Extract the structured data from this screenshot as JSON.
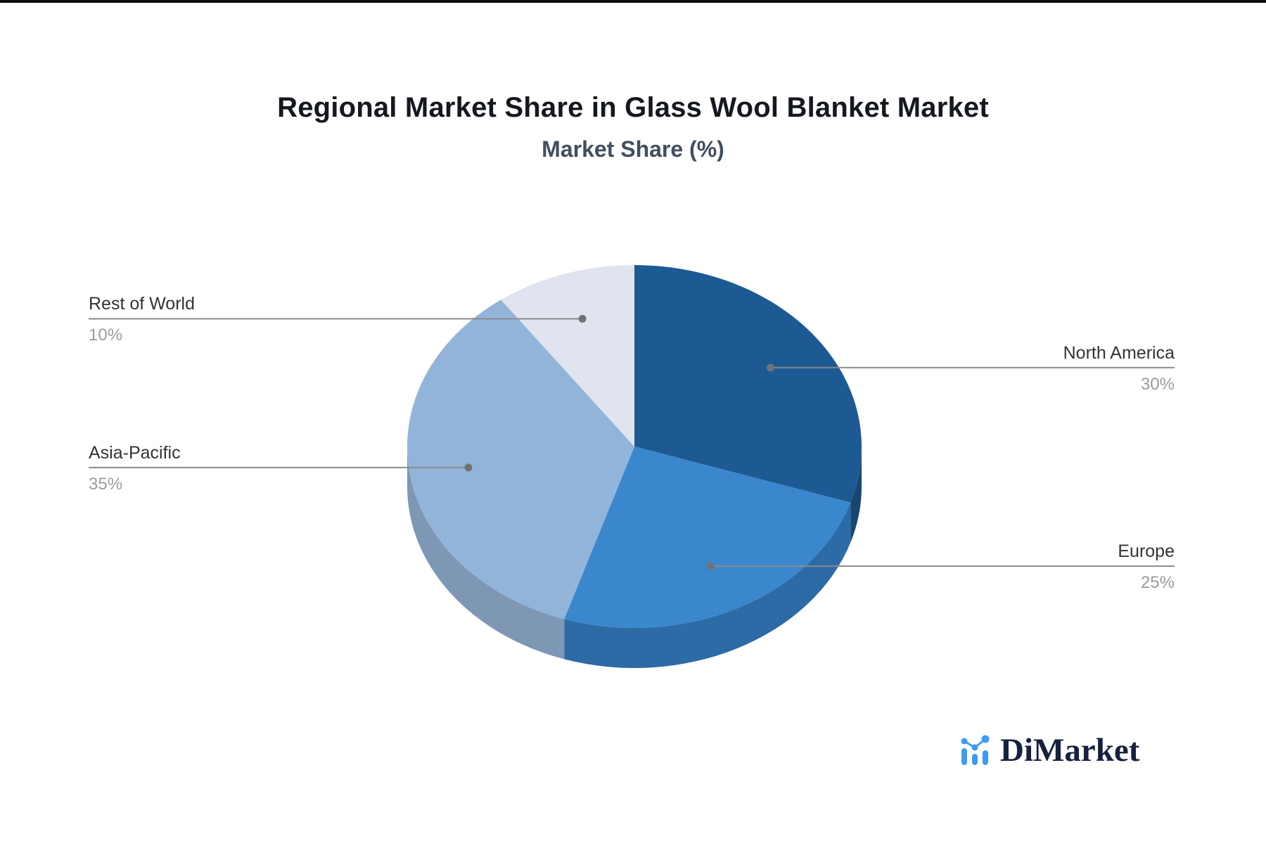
{
  "header": {
    "title": "Regional Market Share in Glass Wool Blanket Market",
    "subtitle": "Market Share (%)"
  },
  "chart_data": {
    "type": "pie",
    "title": "Regional Market Share in Glass Wool Blanket Market",
    "subtitle": "Market Share (%)",
    "unit": "%",
    "effect": "3d-depth",
    "start_angle_deg": 0,
    "direction": "clockwise",
    "slices": [
      {
        "label": "North America",
        "value": 30,
        "display": "30%",
        "color": "#1D5A93",
        "side_color": "#174771",
        "label_side": "right"
      },
      {
        "label": "Europe",
        "value": 25,
        "display": "25%",
        "color": "#3A87CE",
        "side_color": "#2C6BA5",
        "label_side": "right"
      },
      {
        "label": "Asia-Pacific",
        "value": 35,
        "display": "35%",
        "color": "#93B4D9",
        "side_color": "#7E97B5",
        "label_side": "left"
      },
      {
        "label": "Rest of World",
        "value": 10,
        "display": "10%",
        "color": "#DFE4EE",
        "side_color": "#C2CBD9",
        "label_side": "left"
      }
    ],
    "leader_line_color": "#8A8A8A",
    "leader_dot_color": "#6F7376",
    "label_color": "#333333",
    "value_color": "#9B9B9B",
    "legend": "none"
  },
  "branding": {
    "name": "DiMarket",
    "text_color": "#16213D",
    "icon": "bar-chart-with-trend-dots",
    "icon_color": "#3E9BF4"
  }
}
